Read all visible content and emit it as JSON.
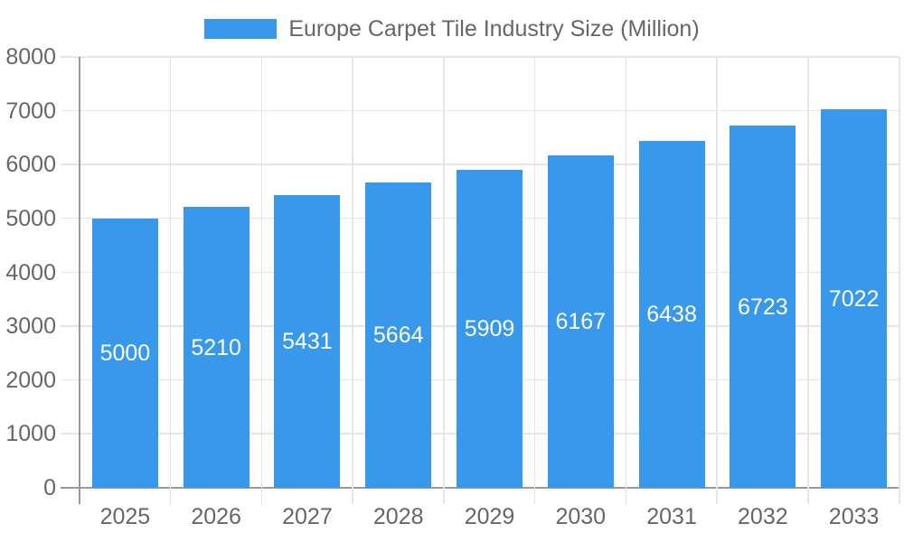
{
  "legend": {
    "label": "Europe Carpet Tile Industry Size (Million)"
  },
  "chart_data": {
    "type": "bar",
    "title": "",
    "legend_label": "Europe Carpet Tile Industry Size (Million)",
    "legend_position": "top",
    "categories": [
      "2025",
      "2026",
      "2027",
      "2028",
      "2029",
      "2030",
      "2031",
      "2032",
      "2033"
    ],
    "values": [
      5000,
      5210,
      5431,
      5664,
      5909,
      6167,
      6438,
      6723,
      7022
    ],
    "bar_value_labels": [
      "5000",
      "5210",
      "5431",
      "5664",
      "5909",
      "6167",
      "6438",
      "6723",
      "7022"
    ],
    "xlabel": "",
    "ylabel": "",
    "ylim": [
      0,
      8000
    ],
    "yticks": [
      0,
      1000,
      2000,
      3000,
      4000,
      5000,
      6000,
      7000,
      8000
    ],
    "ytick_labels": [
      "0",
      "1000",
      "2000",
      "3000",
      "4000",
      "5000",
      "6000",
      "7000",
      "8000"
    ],
    "grid": "on",
    "colors": {
      "bar": "#3899ec",
      "grid_light": "#e5e5e5",
      "axis": "#999999",
      "tick_text": "#666666",
      "bar_label_text": "#ffffff",
      "background": "#ffffff"
    }
  }
}
